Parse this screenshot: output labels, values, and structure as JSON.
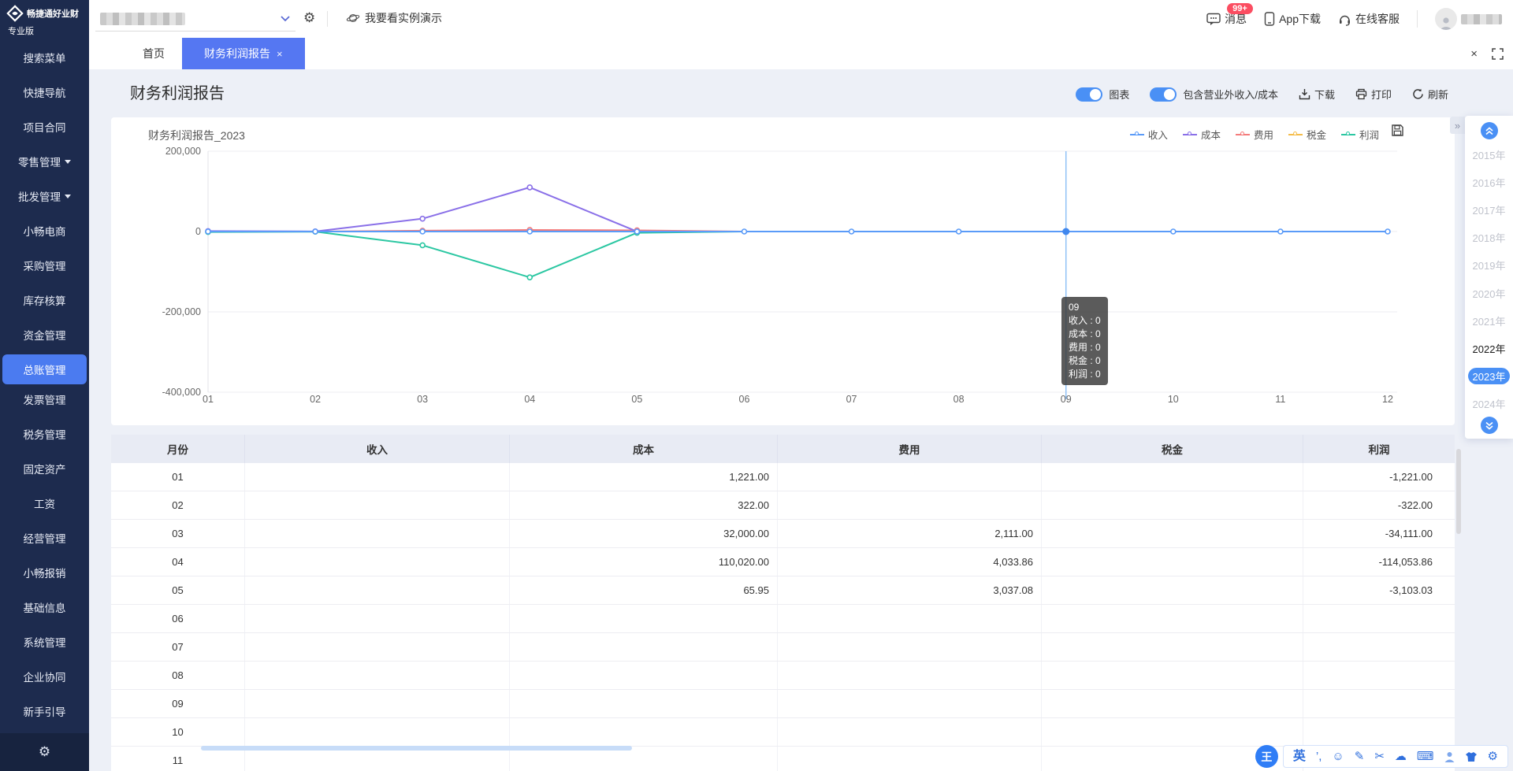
{
  "brand": {
    "name": "畅捷通好业财",
    "edition": "专业版"
  },
  "topbar": {
    "demo_link": "我要看实例演示",
    "messages": "消息",
    "messages_badge": "99+",
    "app_download": "App下载",
    "online_support": "在线客服"
  },
  "sidebar": {
    "items": [
      {
        "label": "搜索菜单"
      },
      {
        "label": "快捷导航"
      },
      {
        "label": "项目合同"
      },
      {
        "label": "零售管理",
        "expandable": true
      },
      {
        "label": "批发管理",
        "expandable": true
      },
      {
        "label": "小畅电商"
      },
      {
        "label": "采购管理"
      },
      {
        "label": "库存核算"
      },
      {
        "label": "资金管理"
      },
      {
        "label": "总账管理",
        "active": true
      },
      {
        "label": "发票管理"
      },
      {
        "label": "税务管理"
      },
      {
        "label": "固定资产"
      },
      {
        "label": "工资"
      },
      {
        "label": "经营管理"
      },
      {
        "label": "小畅报销"
      },
      {
        "label": "基础信息"
      },
      {
        "label": "系统管理"
      },
      {
        "label": "企业协同"
      },
      {
        "label": "新手引导"
      }
    ]
  },
  "tabs": [
    {
      "label": "首页",
      "active": false,
      "closable": false
    },
    {
      "label": "财务利润报告",
      "active": true,
      "closable": true
    }
  ],
  "page": {
    "title": "财务利润报告",
    "toolbar": {
      "chart_toggle": "图表",
      "include_toggle": "包含营业外收入/成本",
      "download": "下载",
      "print": "打印",
      "refresh": "刷新"
    }
  },
  "chart_data": {
    "type": "line",
    "title": "财务利润报告_2023",
    "x": [
      "01",
      "02",
      "03",
      "04",
      "05",
      "06",
      "07",
      "08",
      "09",
      "10",
      "11",
      "12"
    ],
    "series": [
      {
        "name": "收入",
        "color": "#5b9bf8",
        "values": [
          0,
          0,
          0,
          0,
          0,
          0,
          0,
          0,
          0,
          0,
          0,
          0
        ]
      },
      {
        "name": "成本",
        "color": "#8a70e8",
        "values": [
          1221,
          322,
          32000,
          110020,
          65.95,
          0,
          0,
          0,
          0,
          0,
          0,
          0
        ]
      },
      {
        "name": "费用",
        "color": "#f47c7c",
        "values": [
          0,
          0,
          2111,
          4033.86,
          3037.08,
          0,
          0,
          0,
          0,
          0,
          0,
          0
        ]
      },
      {
        "name": "税金",
        "color": "#f5bd4a",
        "values": [
          0,
          0,
          0,
          0,
          0,
          0,
          0,
          0,
          0,
          0,
          0,
          0
        ]
      },
      {
        "name": "利润",
        "color": "#2bc7a2",
        "values": [
          -1221,
          -322,
          -34111,
          -114053.86,
          -3103.03,
          0,
          0,
          0,
          0,
          0,
          0,
          0
        ]
      }
    ],
    "ylim": [
      -400000,
      200000
    ],
    "yticks": [
      "200,000",
      "0",
      "-200,000",
      "-400,000"
    ],
    "grid": true,
    "legend_position": "top-right",
    "hover_index": 8,
    "tooltip": {
      "title": "09",
      "lines": [
        "收入 : 0",
        "成本 : 0",
        "费用 : 0",
        "税金 : 0",
        "利润 : 0"
      ]
    }
  },
  "table": {
    "headers": [
      "月份",
      "收入",
      "成本",
      "费用",
      "税金",
      "利润"
    ],
    "rows": [
      [
        "01",
        "",
        "1,221.00",
        "",
        "",
        "-1,221.00"
      ],
      [
        "02",
        "",
        "322.00",
        "",
        "",
        "-322.00"
      ],
      [
        "03",
        "",
        "32,000.00",
        "2,111.00",
        "",
        "-34,111.00"
      ],
      [
        "04",
        "",
        "110,020.00",
        "4,033.86",
        "",
        "-114,053.86"
      ],
      [
        "05",
        "",
        "65.95",
        "3,037.08",
        "",
        "-3,103.03"
      ],
      [
        "06",
        "",
        "",
        "",
        "",
        ""
      ],
      [
        "07",
        "",
        "",
        "",
        "",
        ""
      ],
      [
        "08",
        "",
        "",
        "",
        "",
        ""
      ],
      [
        "09",
        "",
        "",
        "",
        "",
        ""
      ],
      [
        "10",
        "",
        "",
        "",
        "",
        ""
      ],
      [
        "11",
        "",
        "",
        "",
        "",
        ""
      ]
    ]
  },
  "year_panel": {
    "years": [
      "2015年",
      "2016年",
      "2017年",
      "2018年",
      "2019年",
      "2020年",
      "2021年",
      "2022年",
      "2023年",
      "2024年"
    ],
    "selected": "2023年",
    "highlighted": "2022年"
  },
  "ime": {
    "logo": "王",
    "mode": "英"
  }
}
